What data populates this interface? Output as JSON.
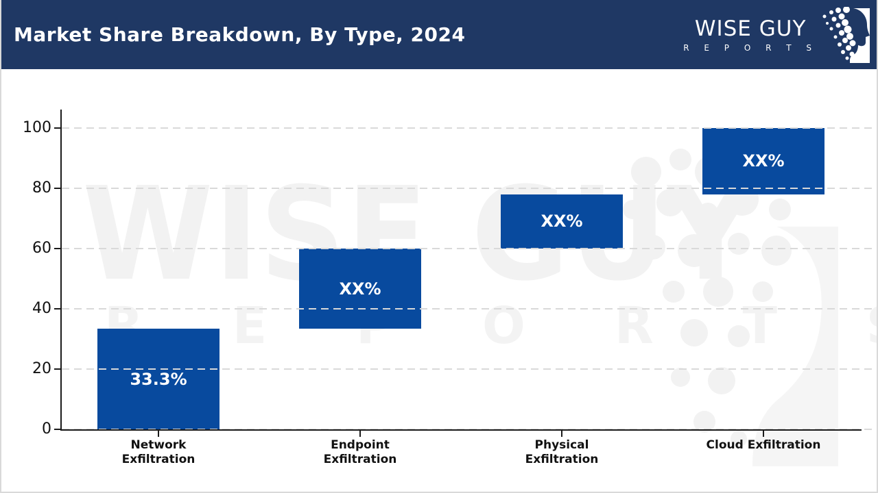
{
  "header": {
    "title": "Market Share Breakdown, By Type, 2024",
    "bg_color": "#1f3864",
    "logo": {
      "name": "WISE GUY",
      "subname": "R E P O R T S"
    }
  },
  "watermark": {
    "line1": "WISE GUY",
    "line2": "R E P O R T S"
  },
  "chart_data": {
    "type": "bar",
    "subtype": "waterfall",
    "title": "Market Share Breakdown, By Type, 2024",
    "categories": [
      "Network Exfiltration",
      "Endpoint Exfiltration",
      "Physical Exfiltration",
      "Cloud Exfiltration"
    ],
    "bars": [
      {
        "category": "Network Exfiltration",
        "label_lines": [
          "Network",
          "Exfiltration"
        ],
        "start": 0,
        "end": 33.3,
        "value_label": "33.3%"
      },
      {
        "category": "Endpoint Exfiltration",
        "label_lines": [
          "Endpoint",
          "Exfiltration"
        ],
        "start": 33.3,
        "end": 60,
        "value_label": "XX%"
      },
      {
        "category": "Physical Exfiltration",
        "label_lines": [
          "Physical",
          "Exfiltration"
        ],
        "start": 60,
        "end": 78,
        "value_label": "XX%"
      },
      {
        "category": "Cloud Exfiltration",
        "label_lines": [
          "Cloud Exfiltration"
        ],
        "start": 78,
        "end": 100,
        "value_label": "XX%"
      }
    ],
    "xlabel": "",
    "ylabel": "",
    "ylim": [
      0,
      100
    ],
    "yticks": [
      0,
      20,
      40,
      60,
      80,
      100
    ],
    "grid": "dashed-horizontal",
    "legend": "none",
    "colors": {
      "bar": "#084a9e",
      "value_label": "#ffffff",
      "axis": "#1a1a1a",
      "gridline": "#dcdcdc",
      "tick_label": "#111111",
      "header_bg": "#1f3864",
      "watermark": "#f2f2f2"
    }
  }
}
